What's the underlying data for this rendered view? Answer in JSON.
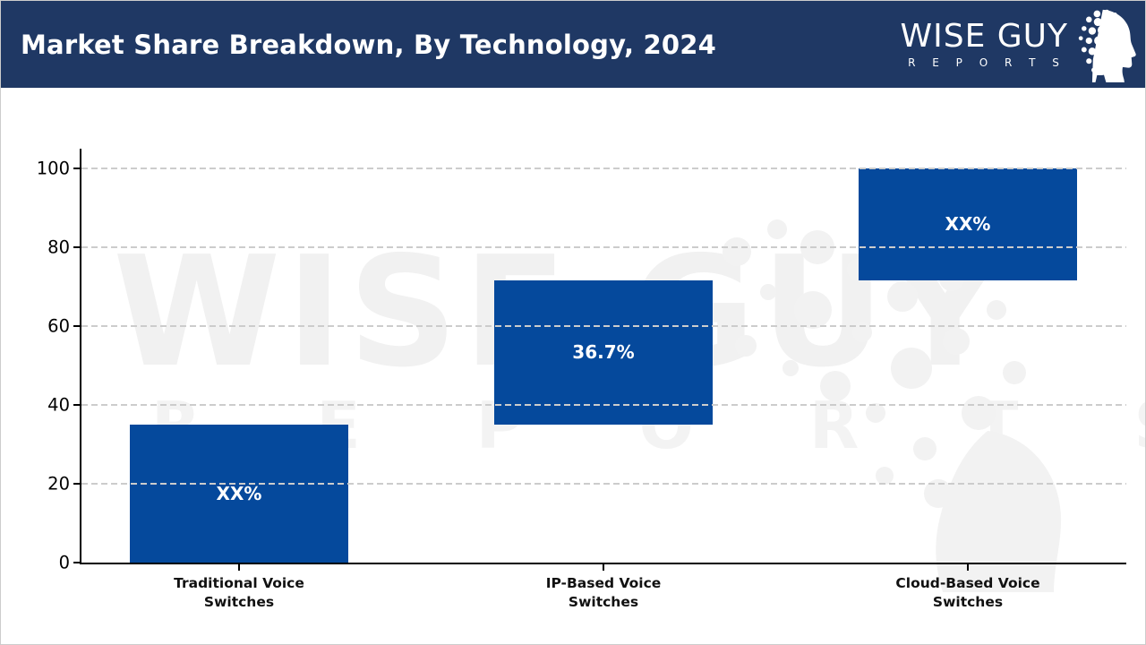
{
  "header": {
    "title": "Market Share Breakdown, By Technology, 2024",
    "bg_color": "#1f3864",
    "logo": {
      "wordmark": "WISE GUY",
      "tagline": "R E P O R T S"
    }
  },
  "watermark": {
    "line1": "WISE GUY",
    "line2": "R E P O R T S"
  },
  "chart_data": {
    "type": "bar",
    "variant": "floating-waterfall",
    "title": "Market Share Breakdown, By Technology, 2024",
    "categories": [
      "Traditional Voice\nSwitches",
      "IP-Based Voice\nSwitches",
      "Cloud-Based Voice\nSwitches"
    ],
    "bars": [
      {
        "category": "Traditional Voice Switches",
        "start": 0,
        "end": 35,
        "label": "XX%"
      },
      {
        "category": "IP-Based Voice Switches",
        "start": 35,
        "end": 71.7,
        "label": "36.7%"
      },
      {
        "category": "Cloud-Based Voice Switches",
        "start": 71.7,
        "end": 100,
        "label": "XX%"
      }
    ],
    "yticks": [
      0,
      20,
      40,
      60,
      80,
      100
    ],
    "ylim": [
      0,
      105
    ],
    "xlabel": "",
    "ylabel": "",
    "grid": true,
    "grid_style": "dashed",
    "legend": false,
    "bar_color": "#05499c",
    "label_color": "#ffffff",
    "axis_color": "#000000",
    "grid_color": "#cccccc"
  }
}
